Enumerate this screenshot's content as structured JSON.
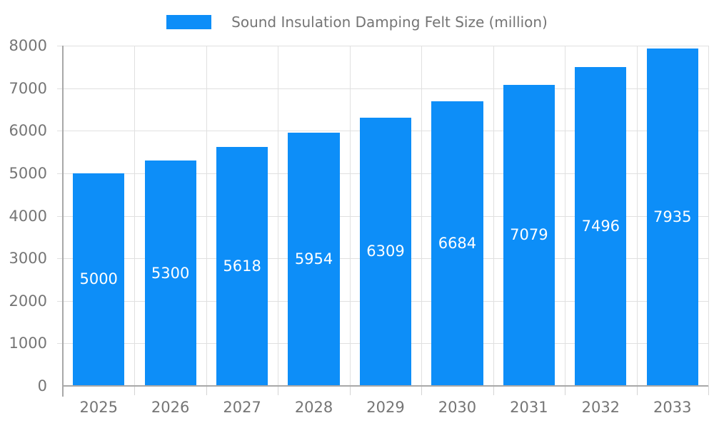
{
  "legend": {
    "label": "Sound Insulation Damping Felt Size (million)"
  },
  "colors": {
    "bar": "#0d8ef8",
    "axis_text": "#757575",
    "grid": "#e0e0e0",
    "tick": "#d4d4d4",
    "axis_line": "#a8a8a8",
    "value_label": "#ffffff",
    "background": "#ffffff"
  },
  "chart_data": {
    "type": "bar",
    "title": "Sound Insulation Damping Felt Size (million)",
    "categories": [
      "2025",
      "2026",
      "2027",
      "2028",
      "2029",
      "2030",
      "2031",
      "2032",
      "2033"
    ],
    "values": [
      5000,
      5300,
      5618,
      5954,
      6309,
      6684,
      7079,
      7496,
      7935
    ],
    "series": [
      {
        "name": "Sound Insulation Damping Felt Size (million)",
        "values": [
          5000,
          5300,
          5618,
          5954,
          6309,
          6684,
          7079,
          7496,
          7935
        ]
      }
    ],
    "xlabel": "",
    "ylabel": "",
    "ylim": [
      0,
      8000
    ],
    "yticks": [
      0,
      1000,
      2000,
      3000,
      4000,
      5000,
      6000,
      7000,
      8000
    ],
    "grid": true,
    "legend_position": "top",
    "value_labels": "inside-center"
  }
}
